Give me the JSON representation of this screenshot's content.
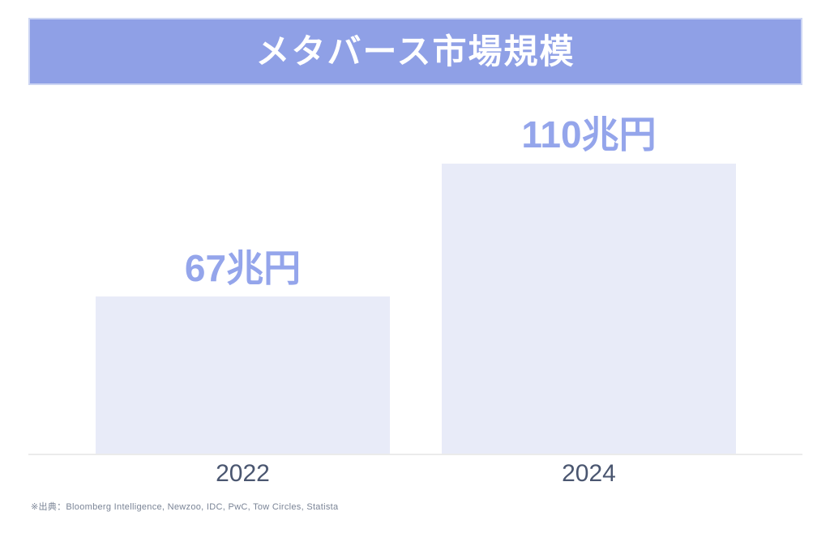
{
  "chart_data": {
    "type": "bar",
    "title": "メタバース市場規模",
    "categories": [
      "2022",
      "2024"
    ],
    "values": [
      67,
      110
    ],
    "unit": "兆円",
    "value_labels": [
      "67兆円",
      "110兆円"
    ],
    "xlabel": "",
    "ylabel": "",
    "ylim": [
      0,
      123
    ],
    "grid": false,
    "legend": "none",
    "colors": {
      "title_bg": "#8fa0e6",
      "title_text": "#ffffff",
      "bar_fill": "#e8ebf8",
      "value_label": "#94a5eb",
      "category_label": "#4a5670",
      "baseline": "#ebebeb"
    }
  },
  "footer": {
    "source_note": "※出典：Bloomberg Intelligence, Newzoo, IDC, PwC, Tow Circles, Statista"
  }
}
